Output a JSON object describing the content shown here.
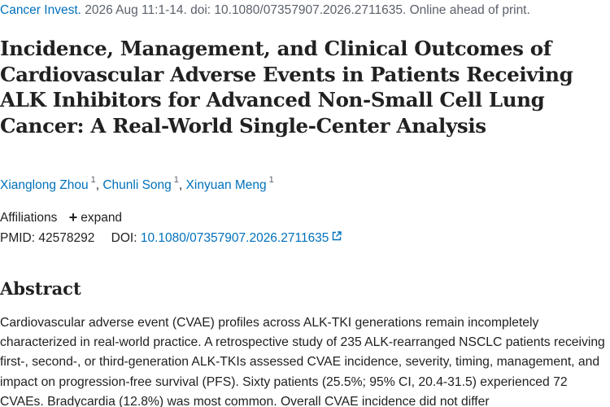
{
  "citation": {
    "journal": "Cancer Invest.",
    "details": " 2026 Aug 11:1-14. doi: 10.1080/07357907.2026.2711635. Online ahead of print."
  },
  "title": "Incidence, Management, and Clinical Outcomes of Cardiovascular Adverse Events in Patients Receiving ALK Inhibitors for Advanced Non-Small Cell Lung Cancer: A Real-World Single-Center Analysis",
  "authors": [
    {
      "name": "Xianglong Zhou",
      "aff": "1"
    },
    {
      "name": "Chunli Song",
      "aff": "1"
    },
    {
      "name": "Xinyuan Meng",
      "aff": "1"
    }
  ],
  "affiliations": {
    "label": "Affiliations",
    "expand_label": "expand"
  },
  "ids": {
    "pmid_label": "PMID:",
    "pmid": "42578292",
    "doi_label": "DOI:",
    "doi": "10.1080/07357907.2026.2711635"
  },
  "abstract": {
    "heading": "Abstract",
    "text": "Cardiovascular adverse event (CVAE) profiles across ALK-TKI generations remain incompletely characterized in real-world practice. A retrospective study of 235 ALK-rearranged NSCLC patients receiving first-, second-, or third-generation ALK-TKIs assessed CVAE incidence, severity, timing, management, and impact on progression-free survival (PFS). Sixty patients (25.5%; 95% CI, 20.4-31.5) experienced 72 CVAEs. Bradycardia (12.8%) was most common. Overall CVAE incidence did not differ"
  },
  "colors": {
    "link": "#0071bc",
    "text": "#212121",
    "muted": "#5b616b"
  }
}
